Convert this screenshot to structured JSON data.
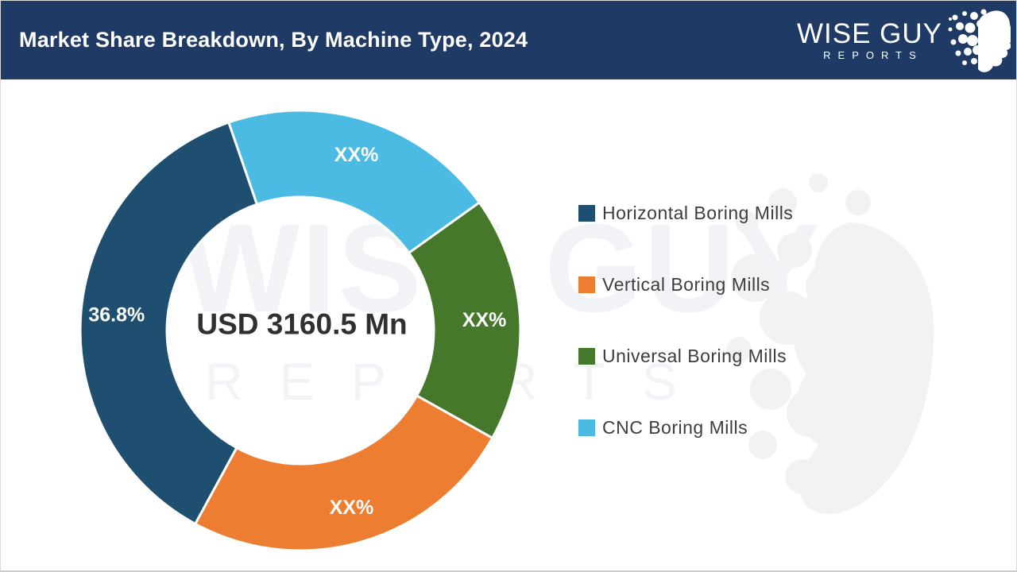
{
  "header": {
    "title": "Market Share Breakdown, By Machine Type, 2024",
    "bg_color": "#1F3A64",
    "logo": {
      "wordmark": "WISE GUY",
      "subtitle": "REPORTS"
    }
  },
  "watermark": {
    "big_text": "WISE GUY",
    "small_text": "REPORTS"
  },
  "chart_data": {
    "type": "pie",
    "subtype": "donut",
    "title": "Market Share Breakdown, By Machine Type, 2024",
    "center_label": "USD 3160.5 Mn",
    "legend_position": "right",
    "start_angle_deg": -19,
    "direction": "clockwise-from-last-slice",
    "slices": [
      {
        "label": "Horizontal Boring Mills",
        "value": 36.8,
        "display": "36.8%",
        "color": "#1F4F70"
      },
      {
        "label": "Vertical Boring Mills",
        "value": 24.8,
        "display": "XX%",
        "color": "#ED7D31"
      },
      {
        "label": "Universal Boring Mills",
        "value": 18.0,
        "display": "XX%",
        "color": "#45782B"
      },
      {
        "label": "CNC Boring Mills",
        "value": 20.4,
        "display": "XX%",
        "color": "#4CBBE4"
      }
    ],
    "colors": {
      "label_text": "#FFFFFF",
      "center_text": "#303030",
      "slice_gap_stroke": "#FFFFFF"
    }
  },
  "legend": {
    "items": [
      {
        "label": "Horizontal Boring Mills",
        "color": "#1F4F70"
      },
      {
        "label": "Vertical Boring Mills",
        "color": "#ED7D31"
      },
      {
        "label": "Universal Boring Mills",
        "color": "#45782B"
      },
      {
        "label": "CNC Boring Mills",
        "color": "#4CBBE4"
      }
    ]
  }
}
